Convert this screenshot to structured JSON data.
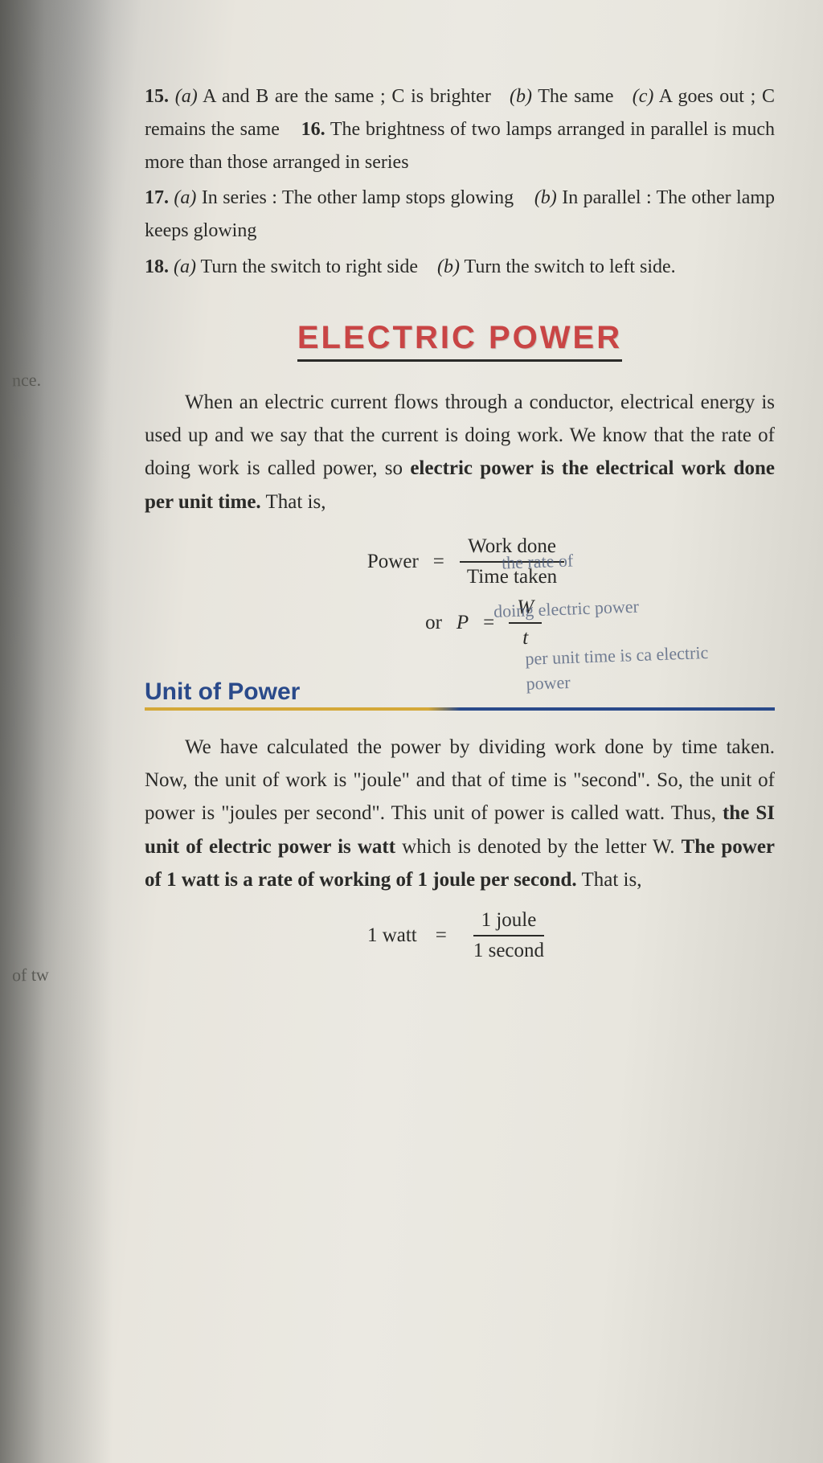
{
  "margin": {
    "nce": "nce.",
    "oftw": "of tw"
  },
  "answers": {
    "q15": {
      "num": "15.",
      "a": "(a)",
      "a_text": " A and B are the same ; C is brighter",
      "b": "(b)",
      "b_text": " The same",
      "c": "(c)",
      "c_text": " A goes out ; C remains the same"
    },
    "q16": {
      "num": "16.",
      "text": " The brightness of two lamps arranged in parallel is much more than those arranged in series"
    },
    "q17": {
      "num": "17.",
      "a": "(a)",
      "a_text": " In series : The other lamp stops glowing",
      "b": "(b)",
      "b_text": " In parallel : The other lamp keeps glowing"
    },
    "q18": {
      "num": "18.",
      "a": "(a)",
      "a_text": " Turn the switch to right side",
      "b": "(b)",
      "b_text": " Turn the switch to left side."
    }
  },
  "section": {
    "title": "ELECTRIC POWER"
  },
  "para1": {
    "line1": "When an electric current flows through a conductor, electrical energy is used up and we say that the current is doing work. We know that the rate of doing work is called power, so ",
    "bold1": "electric power is the electrical work done per unit time.",
    "line2": " That is,"
  },
  "formula": {
    "power_label": "Power",
    "eq": "=",
    "work_done": "Work done",
    "time_taken": "Time taken",
    "or": "or",
    "P": "P",
    "W": "W",
    "t": "t"
  },
  "handwriting": {
    "hw1": "the rate of",
    "hw2": "doing electric power",
    "hw3": "per unit time is ca electric power"
  },
  "subheading": "Unit of Power",
  "para2": {
    "text1": "We have calculated the power by dividing work done by time taken. Now, the unit of work is \"joule\" and that of time is \"second\". So, the unit of power is \"joules per second\". This unit of power is called watt. Thus, ",
    "bold1": "the SI unit of electric power is watt",
    "text2": " which is denoted by the letter W. ",
    "bold2": "The power of 1 watt is a rate of working of 1 joule per second.",
    "text3": " That is,"
  },
  "watt_formula": {
    "one_watt": "1 watt",
    "eq": "=",
    "one_joule": "1 joule",
    "one_second": "1 second"
  },
  "colors": {
    "title_red": "#c94545",
    "subhead_blue": "#2a4a8a",
    "rule_gold": "#d4a838",
    "text": "#2a2a28",
    "handwriting": "#4a5a7a"
  },
  "typography": {
    "body_fontsize": 25,
    "answer_fontsize": 24,
    "title_fontsize": 40,
    "subhead_fontsize": 30,
    "body_family": "Georgia serif",
    "title_family": "Arial sans-serif"
  }
}
